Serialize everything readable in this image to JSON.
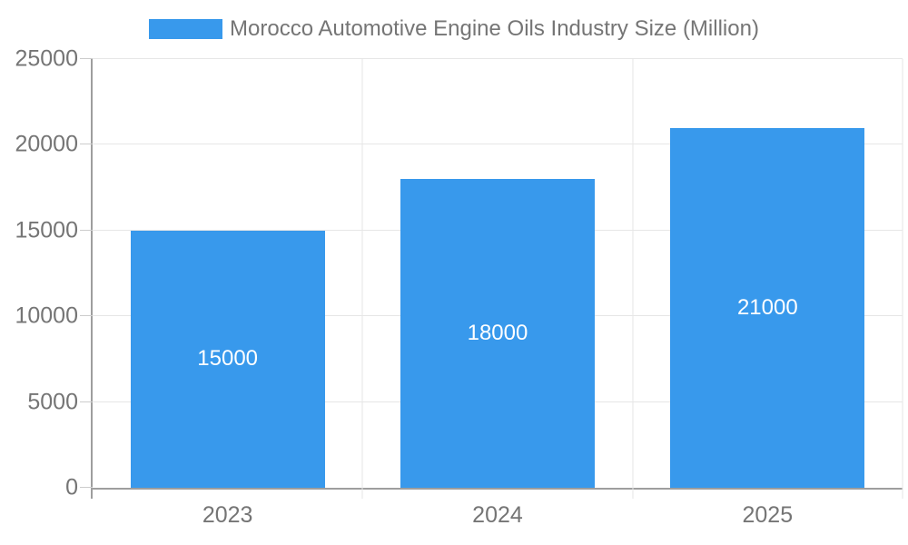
{
  "chart_data": {
    "type": "bar",
    "title": "Morocco Automotive Engine Oils Industry Size (Million)",
    "categories": [
      "2023",
      "2024",
      "2025"
    ],
    "values": [
      15000,
      18000,
      21000
    ],
    "bar_labels": [
      "15000",
      "18000",
      "21000"
    ],
    "xlabel": "",
    "ylabel": "",
    "ylim": [
      0,
      25000
    ],
    "ytick_step": 5000,
    "ytick_labels": [
      "0",
      "5000",
      "10000",
      "15000",
      "20000",
      "25000"
    ],
    "grid": true,
    "legend_position": "top",
    "colors": {
      "bar": "#3899ec",
      "axis": "#9e9e9e",
      "gridline": "#e6e6e6",
      "tick": "#cccccc",
      "text": "#757575",
      "bar_value_text": "#ffffff",
      "background": "#ffffff"
    }
  }
}
